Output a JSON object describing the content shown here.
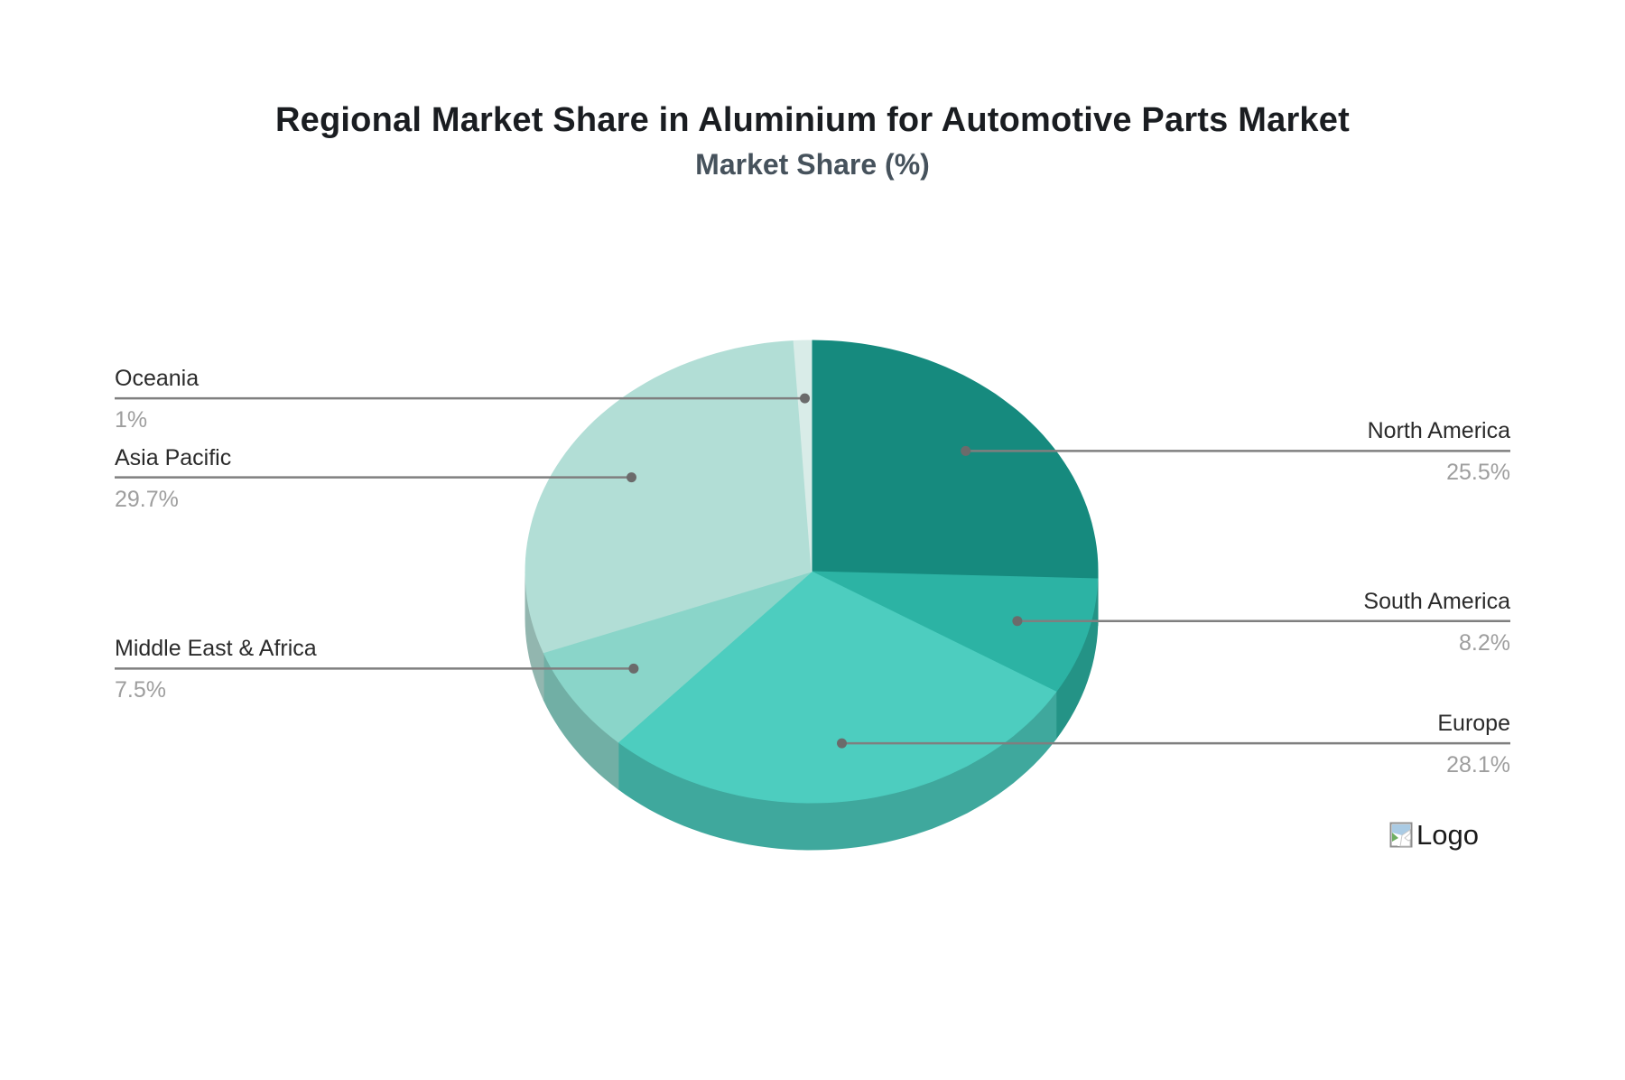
{
  "header": {
    "title": "Regional Market Share in Aluminium for Automotive Parts Market",
    "subtitle": "Market Share (%)"
  },
  "watermark": {
    "label": "Logo"
  },
  "chart_data": {
    "type": "pie",
    "title": "Regional Market Share in Aluminium for Automotive Parts Market",
    "subtitle": "Market Share (%)",
    "unit": "%",
    "pie_3d": true,
    "start_angle_deg": 0,
    "direction": "clockwise",
    "legend_position": "connected-labels",
    "slices": [
      {
        "label": "North America",
        "value": 25.5,
        "display": "25.5%",
        "color": "#168A7E",
        "label_side": "right"
      },
      {
        "label": "South America",
        "value": 8.2,
        "display": "8.2%",
        "color": "#2CB3A4",
        "label_side": "right"
      },
      {
        "label": "Europe",
        "value": 28.1,
        "display": "28.1%",
        "color": "#4DCDBF",
        "label_side": "right"
      },
      {
        "label": "Middle East & Africa",
        "value": 7.5,
        "display": "7.5%",
        "color": "#8AD5C9",
        "label_side": "left"
      },
      {
        "label": "Asia Pacific",
        "value": 29.7,
        "display": "29.7%",
        "color": "#B2DED6",
        "label_side": "left"
      },
      {
        "label": "Oceania",
        "value": 1,
        "display": "1%",
        "color": "#D9ECE8",
        "label_side": "left"
      }
    ],
    "style": {
      "title_color": "#1A1D21",
      "subtitle_color": "#46525C",
      "label_color": "#2B2B2B",
      "percent_color": "#9E9E9E",
      "leader_line_color": "#7F7F7F",
      "dot_color": "#6B6B6B",
      "background_color": "#FFFFFF"
    }
  }
}
